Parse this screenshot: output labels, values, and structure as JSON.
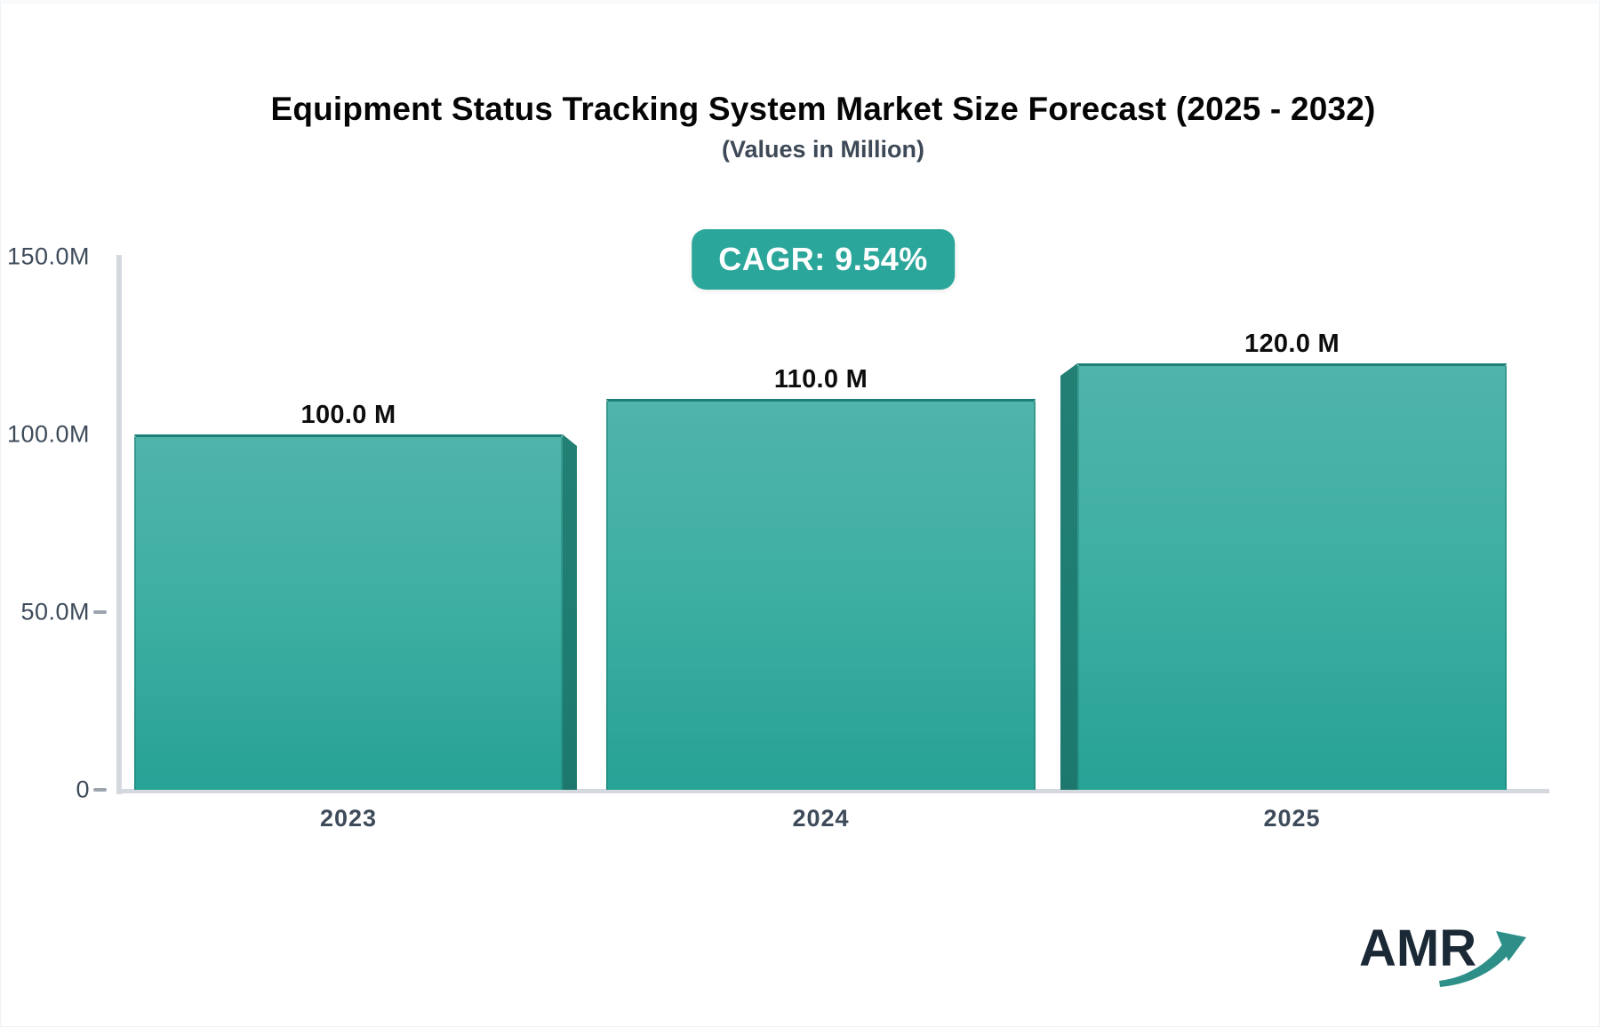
{
  "header": {
    "title": "Equipment Status Tracking System Market Size Forecast (2025 - 2032)",
    "subtitle": "(Values in Million)"
  },
  "badge": {
    "text": "CAGR: 9.54%",
    "bg_color": "#2ba69b",
    "text_color": "#ffffff"
  },
  "logo": {
    "text": "AMR",
    "text_color": "#1b2836",
    "arrow_icon": "trend-up-arrow",
    "arrow_color": "#2e8f89"
  },
  "chart_data": {
    "type": "bar",
    "title": "Equipment Status Tracking System Market Size Forecast (2025 - 2032)",
    "subtitle": "(Values in Million)",
    "categories": [
      "2023",
      "2024",
      "2025"
    ],
    "values": [
      100.0,
      110.0,
      120.0
    ],
    "value_labels": [
      "100.0 M",
      "110.0 M",
      "120.0 M"
    ],
    "unit": "M",
    "ylim": [
      0,
      150
    ],
    "yticks": [
      {
        "value": 150,
        "label": "150.0M",
        "dash": false
      },
      {
        "value": 100,
        "label": "100.0M",
        "dash": false
      },
      {
        "value": 50,
        "label": "50.0M",
        "dash": true
      },
      {
        "value": 0,
        "label": "0",
        "dash": true
      }
    ],
    "grid": false,
    "legend": "none",
    "bar_style": {
      "face_top_color": "#50b4aa",
      "face_bottom_color": "#27a295",
      "top_border_color": "#1b8076",
      "side_face_color": "#1e7d72",
      "effect": "3d-extrusion-toward-center"
    }
  }
}
